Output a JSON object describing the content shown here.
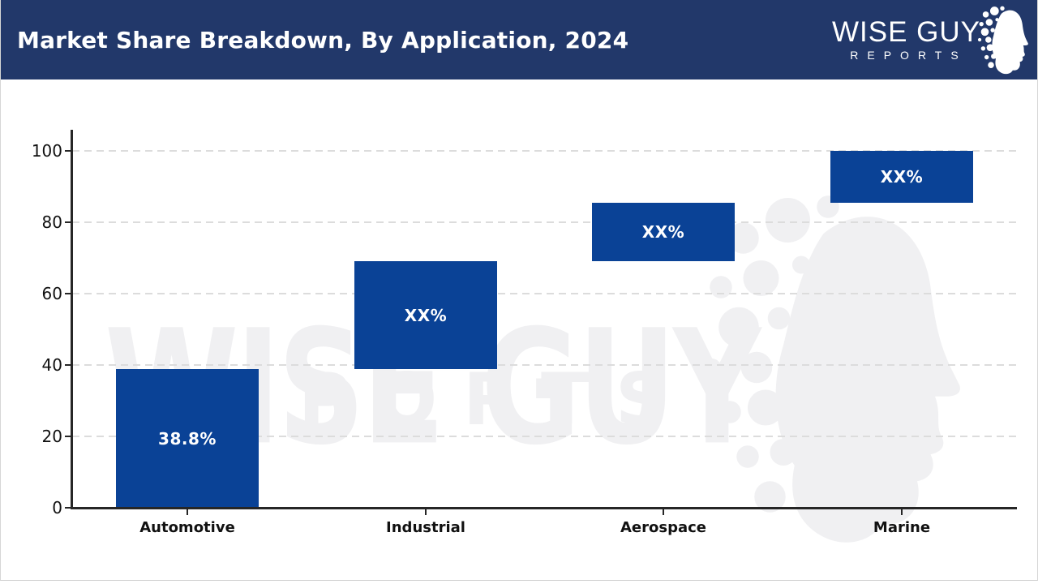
{
  "header": {
    "title": "Market Share Breakdown, By Application, 2024"
  },
  "logo": {
    "line1": "WISE GUY",
    "line2": "REPORTS",
    "icon": "dot-face-profile-icon"
  },
  "watermark": {
    "line1": "WISE GUY",
    "line2": "REPORTS",
    "icon": "dot-face-profile-icon"
  },
  "colors": {
    "header_bg": "#22386A",
    "header_text": "#FFFFFF",
    "bar": "#0A4296",
    "bar_label_text": "#FFFFFF",
    "axis": "#262626",
    "tick_text": "#111111",
    "grid": "#DCDCDC",
    "watermark": "#F0F0F2",
    "card_border": "#D6D6D6"
  },
  "chart_data": {
    "type": "bar",
    "subtype": "waterfall-stacked",
    "title": "Market Share Breakdown, By Application, 2024",
    "xlabel": "",
    "ylabel": "",
    "categories": [
      "Automotive",
      "Industrial",
      "Aerospace",
      "Marine"
    ],
    "segments": [
      {
        "category": "Automotive",
        "start": 0,
        "end": 38.8,
        "label": "38.8%"
      },
      {
        "category": "Industrial",
        "start": 38.8,
        "end": 69.0,
        "label": "XX%"
      },
      {
        "category": "Aerospace",
        "start": 69.0,
        "end": 85.5,
        "label": "XX%"
      },
      {
        "category": "Marine",
        "start": 85.5,
        "end": 100.0,
        "label": "XX%"
      }
    ],
    "yticks": [
      0,
      20,
      40,
      60,
      80,
      100
    ],
    "ylim": [
      0,
      106
    ],
    "grid": "horizontal-dashed",
    "legend": "none"
  }
}
